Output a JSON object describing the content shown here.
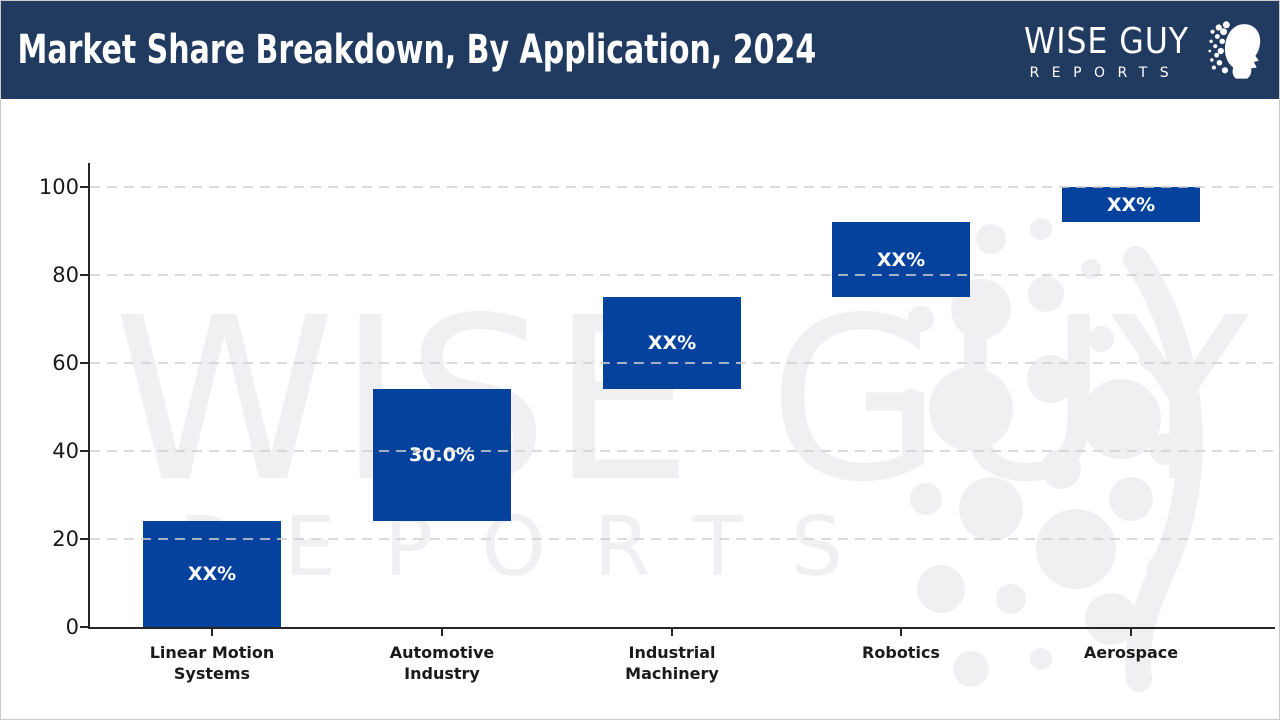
{
  "header": {
    "title": "Market Share Breakdown, By Application, 2024",
    "logo": {
      "line1": "WISE GUY",
      "line2": "REPORTS",
      "face_icon": "dotted-head-profile"
    }
  },
  "watermark": {
    "line1": "WISE GUY",
    "line2": "REPORTS",
    "face": "dotted-head-profile"
  },
  "colors": {
    "header_bg": "#213a5f",
    "bar_blue": "#05429e",
    "axis_text": "#1a1a1a",
    "spine": "#262626",
    "grid": "#d0d0d0",
    "watermark": "#f0f0f2",
    "frame_border": "#cccccc",
    "title_text": "#ffffff",
    "bar_label_text": "#ffffff"
  },
  "chart_data": {
    "type": "bar",
    "variant": "floating-waterfall-segments",
    "title": "Market Share Breakdown, By Application, 2024",
    "categories": [
      [
        "Linear Motion",
        "Systems"
      ],
      [
        "Automotive",
        "Industry"
      ],
      [
        "Industrial",
        "Machinery"
      ],
      [
        "Robotics"
      ],
      [
        "Aerospace"
      ]
    ],
    "bars": [
      {
        "category": "Linear Motion Systems",
        "start": 0,
        "end": 24,
        "label": "XX%"
      },
      {
        "category": "Automotive Industry",
        "start": 24,
        "end": 54,
        "label": "30.0%"
      },
      {
        "category": "Industrial Machinery",
        "start": 54,
        "end": 75,
        "label": "XX%"
      },
      {
        "category": "Robotics",
        "start": 75,
        "end": 92,
        "label": "XX%"
      },
      {
        "category": "Aerospace",
        "start": 92,
        "end": 100,
        "label": "XX%"
      }
    ],
    "xlabel": "",
    "ylabel": "",
    "y_ticks": [
      0,
      20,
      40,
      60,
      80,
      100
    ],
    "ylim": [
      0,
      105
    ],
    "grid": {
      "horizontal": true,
      "style": "dashed"
    },
    "legend": "none"
  }
}
